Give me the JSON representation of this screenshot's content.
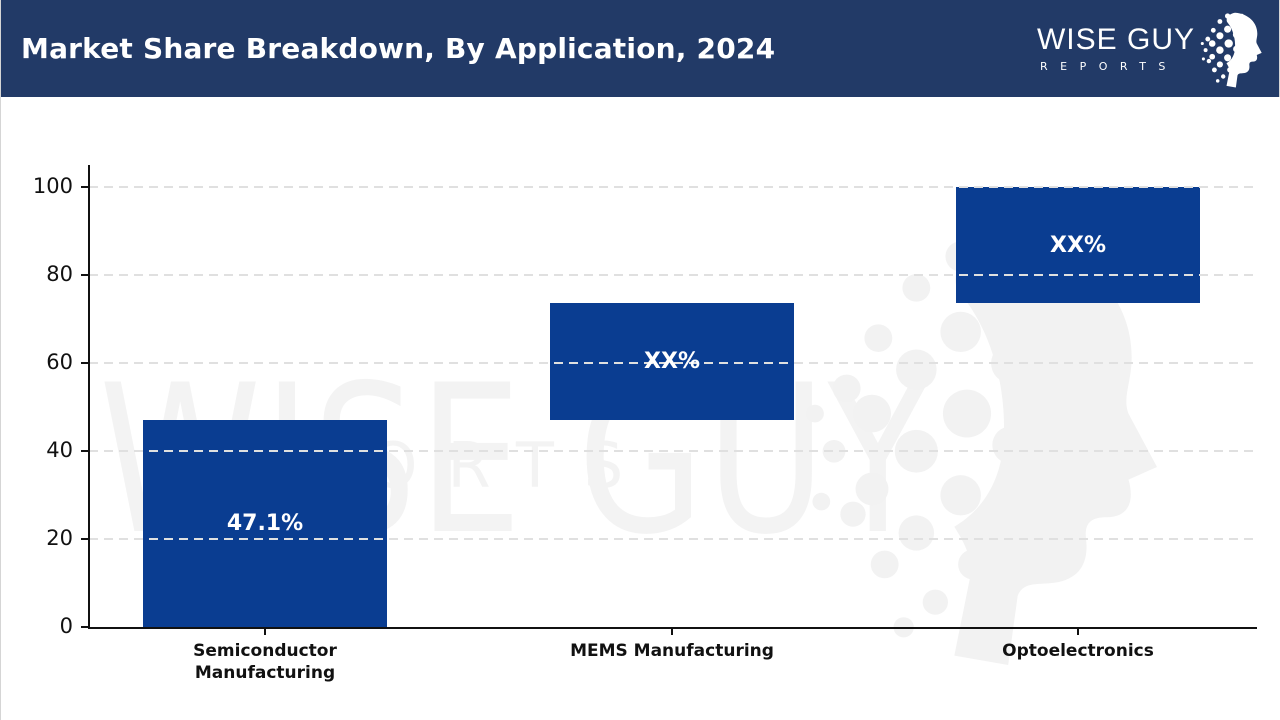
{
  "header": {
    "title": "Market Share Breakdown, By Application, 2024",
    "background": "#223a67",
    "brand": {
      "line1": "WISE GUY",
      "line2": "REPORTS"
    }
  },
  "watermark": {
    "line1": "WISE GUY",
    "line2": "REPORTS",
    "color": "#f3f3f3"
  },
  "chart_data": {
    "type": "bar",
    "variant": "waterfall",
    "categories": [
      "Semiconductor Manufacturing",
      "MEMS Manufacturing",
      "Optoelectronics"
    ],
    "segments": [
      {
        "category": "Semiconductor Manufacturing",
        "start": 0,
        "end": 47.1,
        "label": "47.1%"
      },
      {
        "category": "MEMS Manufacturing",
        "start": 47.1,
        "end": 73.6,
        "label": "XX%"
      },
      {
        "category": "Optoelectronics",
        "start": 73.6,
        "end": 100,
        "label": "XX%"
      }
    ],
    "title": "",
    "xlabel": "",
    "ylabel": "",
    "ylim": [
      0,
      105
    ],
    "yticks": [
      0,
      20,
      40,
      60,
      80,
      100
    ],
    "grid": "horizontal dashed gridlines drawn over bars",
    "legend": "none",
    "bar_color": "#0a3d91",
    "bar_label_color": "#ffffff",
    "axis_color": "#111111",
    "gridline_color": "#e0e0e0"
  }
}
